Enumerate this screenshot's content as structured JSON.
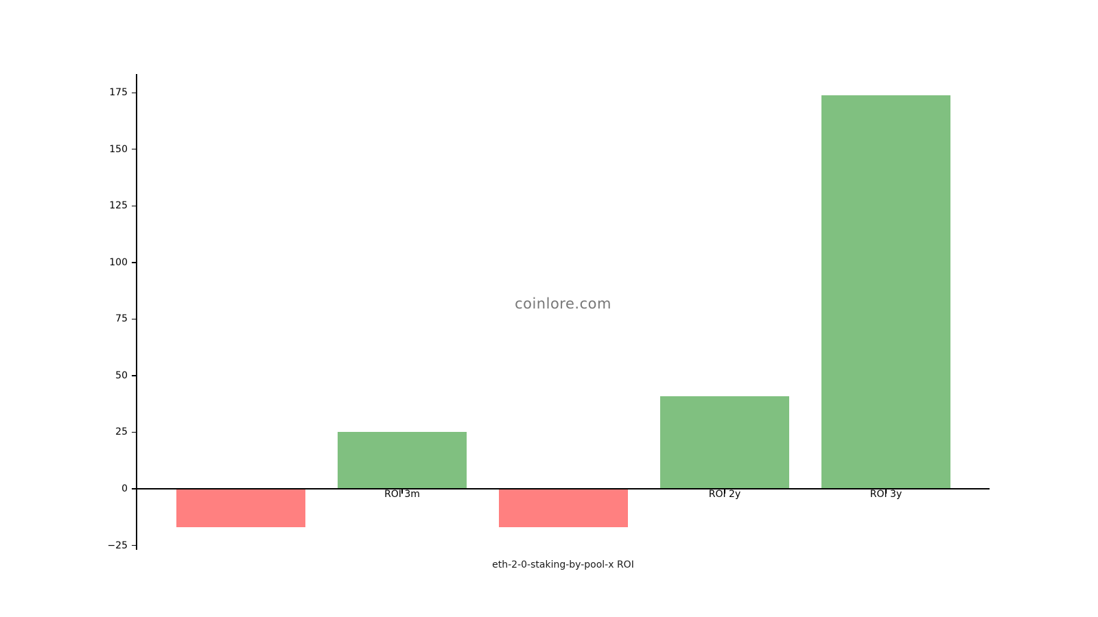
{
  "chart_data": {
    "type": "bar",
    "categories": [
      "",
      "ROI 3m",
      "",
      "ROI 2y",
      "ROI 3y"
    ],
    "values": [
      -17,
      25,
      -17,
      41,
      174
    ],
    "bar_colors": [
      "#ff8080",
      "#80c080",
      "#ff8080",
      "#80c080",
      "#80c080"
    ],
    "positive_color": "#80c080",
    "negative_color": "#ff8080",
    "title": "eth-2-0-staking-by-pool-x ROI",
    "xlabel": "",
    "ylabel": "",
    "yticks": [
      -25,
      0,
      25,
      50,
      75,
      100,
      125,
      150,
      175
    ],
    "ylim": [
      -27,
      184
    ],
    "grid": false,
    "legend": null,
    "axis_color": "#000000",
    "watermark": "coinlore.com",
    "watermark_color": "#777777"
  }
}
